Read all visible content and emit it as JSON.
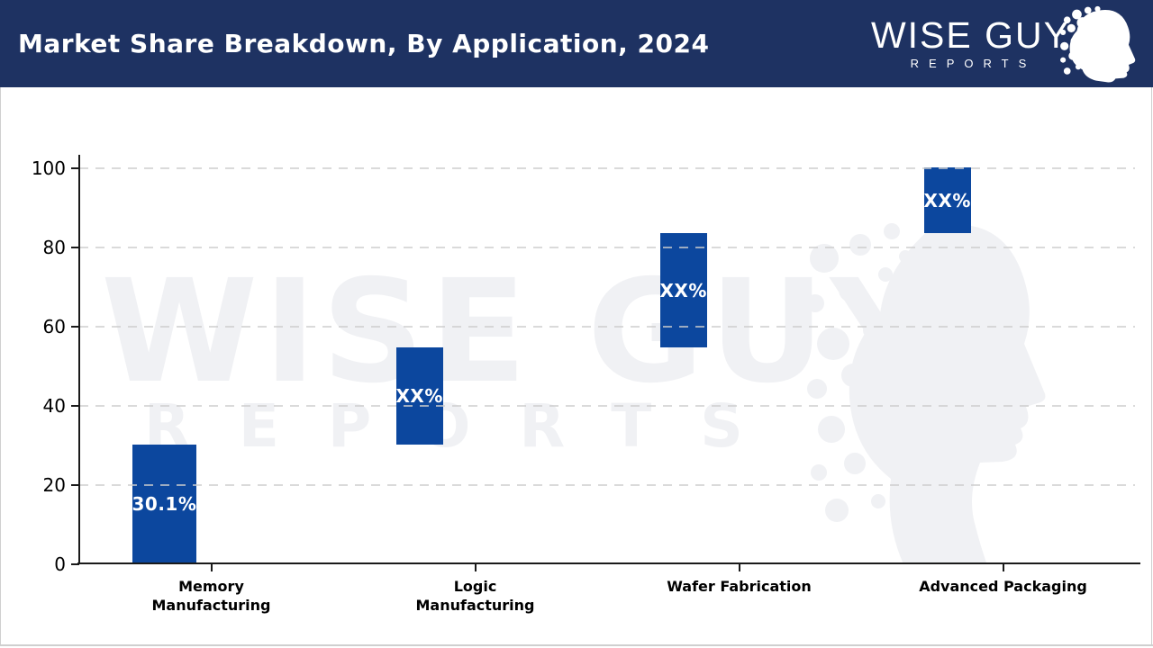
{
  "header": {
    "title": "Market Share Breakdown, By Application, 2024",
    "logo": {
      "brand": "WISE GUY",
      "sub": "REPORTS"
    }
  },
  "watermark": {
    "line1": "WISE GUY",
    "line2": "REPORTS"
  },
  "chart_data": {
    "type": "bar",
    "subtype": "waterfall",
    "title": "Market Share Breakdown, By Application, 2024",
    "categories": [
      "Memory Manufacturing",
      "Logic Manufacturing",
      "Wafer Fabrication",
      "Advanced Packaging"
    ],
    "category_lines": [
      [
        "Memory",
        "Manufacturing"
      ],
      [
        "Logic",
        "Manufacturing"
      ],
      [
        "Wafer Fabrication"
      ],
      [
        "Advanced Packaging"
      ]
    ],
    "bars": [
      {
        "category": "Memory Manufacturing",
        "start": 0,
        "end": 30.1,
        "label": "30.1%"
      },
      {
        "category": "Logic Manufacturing",
        "start": 30.1,
        "end": 54.5,
        "label": "XX%"
      },
      {
        "category": "Wafer Fabrication",
        "start": 54.5,
        "end": 83.4,
        "label": "XX%"
      },
      {
        "category": "Advanced Packaging",
        "start": 83.4,
        "end": 100,
        "label": "XX%"
      }
    ],
    "ylim": [
      0,
      100
    ],
    "yticks": [
      0,
      20,
      40,
      60,
      80,
      100
    ],
    "xlabel": "",
    "ylabel": "",
    "legend": "none",
    "grid": "horizontal-dashed",
    "bar_color": "#0c479e"
  },
  "colors": {
    "header_bg": "#1e3262",
    "bar": "#0c479e",
    "grid": "#cdcdcd",
    "watermark": "#f0f1f4",
    "axis": "#1a1a1a"
  }
}
